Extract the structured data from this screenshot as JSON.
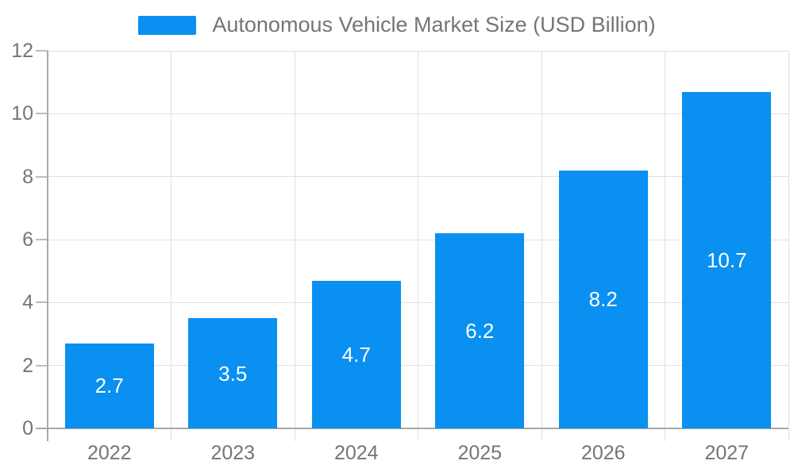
{
  "chart_data": {
    "type": "bar",
    "title": "Autonomous Vehicle Market Size (USD Billion)",
    "categories": [
      "2022",
      "2023",
      "2024",
      "2025",
      "2026",
      "2027"
    ],
    "values": [
      2.7,
      3.5,
      4.7,
      6.2,
      8.2,
      10.7
    ],
    "series": [
      {
        "name": "Autonomous Vehicle Market Size (USD Billion)",
        "values": [
          2.7,
          3.5,
          4.7,
          6.2,
          8.2,
          10.7
        ]
      }
    ],
    "value_labels": [
      "2.7",
      "3.5",
      "4.7",
      "6.2",
      "8.2",
      "10.7"
    ],
    "xlabel": "",
    "ylabel": "",
    "ylim": [
      0,
      12
    ],
    "yticks": [
      0,
      2,
      4,
      6,
      8,
      10,
      12
    ],
    "grid": true,
    "legend_position": "top-center",
    "colors": {
      "bar": "#0a90f0",
      "bar_label": "#ffffff",
      "axis_text": "#757575",
      "gridline": "#e0e0e0",
      "axis_line": "#a8a8a8",
      "background": "#ffffff"
    }
  }
}
